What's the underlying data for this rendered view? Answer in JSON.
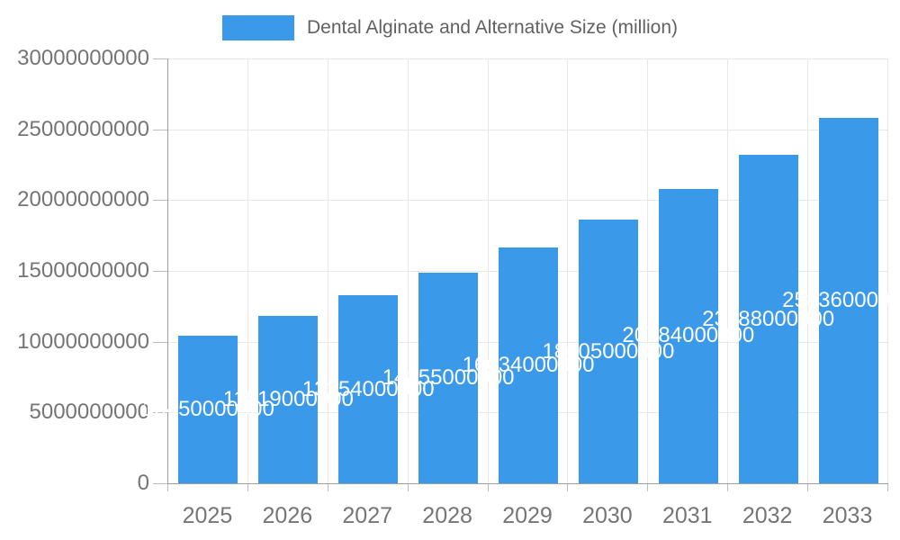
{
  "chart_data": {
    "type": "bar",
    "title": "Dental Alginate and Alternative Size (million)",
    "categories": [
      "2025",
      "2026",
      "2027",
      "2028",
      "2029",
      "2030",
      "2031",
      "2032",
      "2033"
    ],
    "values": [
      10450000000,
      11819000000,
      13254000000,
      14855000000,
      16634000000,
      18605000000,
      20784000000,
      23188000000,
      25836000000
    ],
    "value_labels": [
      "10450000000",
      "11819000000",
      "13254000000",
      "14855000000",
      "16634000000",
      "18605000000",
      "20784000000",
      "23188000000",
      "25836000000"
    ],
    "series_name": "Dental Alginate and Alternative Size (million)",
    "xlabel": "",
    "ylabel": "",
    "ylim": [
      0,
      30000000000
    ],
    "ytick_values": [
      0,
      5000000000,
      10000000000,
      15000000000,
      20000000000,
      25000000000,
      30000000000
    ],
    "ytick_labels": [
      "0",
      "5000000000",
      "10000000000",
      "15000000000",
      "20000000000",
      "25000000000",
      "30000000000"
    ],
    "grid": true,
    "legend_position": "top",
    "value_label_position": "center-of-bar",
    "colors": {
      "bar": "#3B99EA",
      "grid": "#E8E8E8",
      "axis": "#9E9E9E",
      "tick_text": "#757575",
      "legend_text": "#616161",
      "value_label_text": "#FFFFFF",
      "background": "#FFFFFF"
    }
  }
}
